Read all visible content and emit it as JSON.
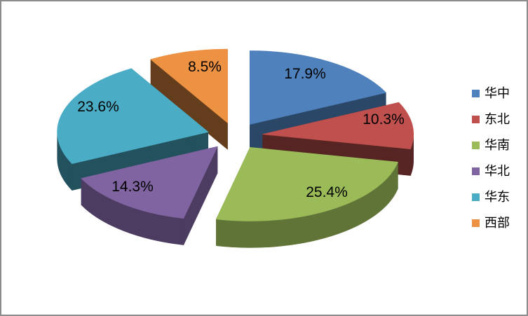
{
  "chart_data": {
    "type": "pie",
    "style": "3d-exploded-pie",
    "categories": [
      "华中",
      "东北",
      "华南",
      "华北",
      "华东",
      "西部"
    ],
    "values": [
      17.9,
      10.3,
      25.4,
      14.3,
      23.6,
      8.5
    ],
    "labels": [
      "17.9%",
      "10.3%",
      "25.4%",
      "14.3%",
      "23.6%",
      "8.5%"
    ],
    "colors": [
      "#4F81BD",
      "#C0504D",
      "#9BBB59",
      "#8064A2",
      "#4BACC6",
      "#ED9143"
    ],
    "title": "",
    "legend_position": "right",
    "label_color": "#000000",
    "background": "#FFFFFF",
    "border_color": "#8C8C8C"
  }
}
